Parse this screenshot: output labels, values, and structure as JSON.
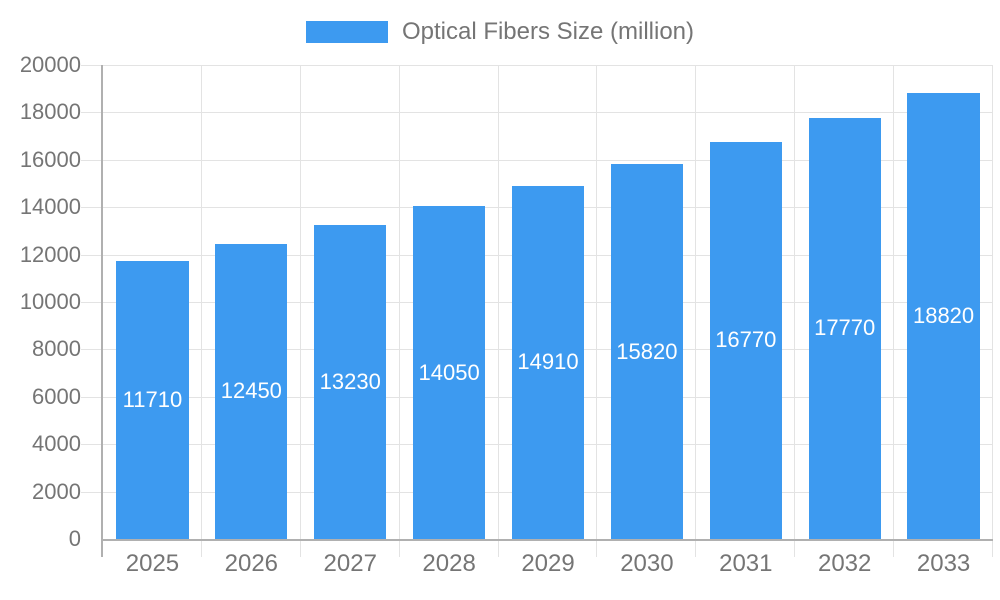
{
  "legend": {
    "label": "Optical Fibers Size (million)"
  },
  "chart_data": {
    "type": "bar",
    "title": "Optical Fibers Size (million)",
    "categories": [
      "2025",
      "2026",
      "2027",
      "2028",
      "2029",
      "2030",
      "2031",
      "2032",
      "2033"
    ],
    "series": [
      {
        "name": "Optical Fibers Size (million)",
        "values": [
          11710,
          12450,
          13230,
          14050,
          14910,
          15820,
          16770,
          17770,
          18820
        ]
      }
    ],
    "data_labels": [
      "11710",
      "12450",
      "13230",
      "14050",
      "14910",
      "15820",
      "16770",
      "17770",
      "18820"
    ],
    "xlabel": "",
    "ylabel": "",
    "ylim": [
      0,
      20000
    ],
    "ytick_step": 2000,
    "yticks": [
      "0",
      "2000",
      "4000",
      "6000",
      "8000",
      "10000",
      "12000",
      "14000",
      "16000",
      "18000",
      "20000"
    ],
    "grid": true,
    "legend_position": "top-center",
    "colors": {
      "bar": "#3D9AF0",
      "bar_label": "#FFFFFF",
      "axis_text": "#757575",
      "gridline": "#E3E3E3",
      "axis_line": "#B0B0B0"
    }
  }
}
